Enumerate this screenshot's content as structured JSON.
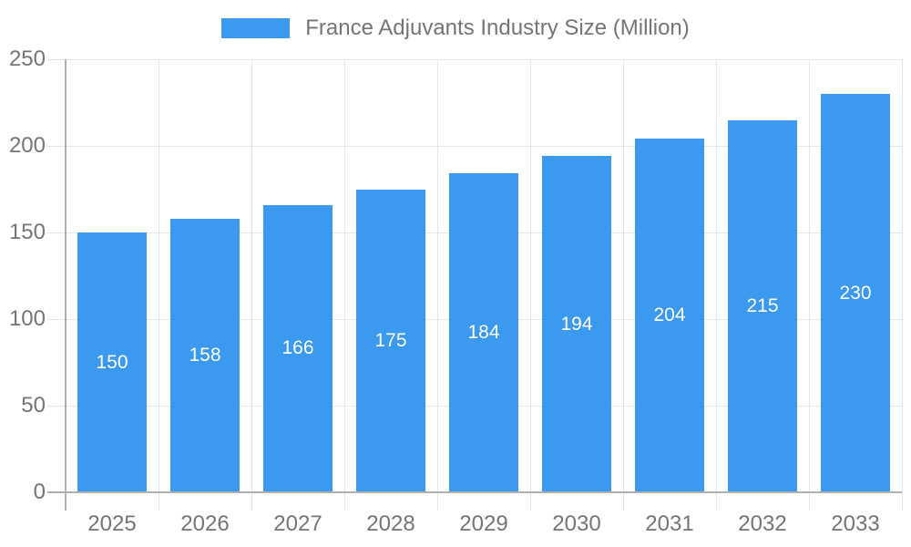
{
  "legend": {
    "label": "France Adjuvants Industry Size (Million)"
  },
  "chart_data": {
    "type": "bar",
    "title": "France Adjuvants Industry Size (Million)",
    "series_name": "France Adjuvants Industry Size (Million)",
    "categories": [
      "2025",
      "2026",
      "2027",
      "2028",
      "2029",
      "2030",
      "2031",
      "2032",
      "2033"
    ],
    "values": [
      150,
      158,
      166,
      175,
      184,
      194,
      204,
      215,
      230
    ],
    "xlabel": "",
    "ylabel": "",
    "ylim": [
      0,
      250
    ],
    "yticks": [
      0,
      50,
      100,
      150,
      200,
      250
    ],
    "grid": true,
    "legend_position": "top-center",
    "bar_label_position": "inside-middle"
  },
  "colors": {
    "bar": "#3B99F0",
    "bar_label": "#FFFFFF",
    "axis_line": "#B0B0B0",
    "gridline": "#E6E6E6",
    "tick": "#E2E2E2",
    "text": "#757575",
    "background": "#FFFFFF"
  }
}
